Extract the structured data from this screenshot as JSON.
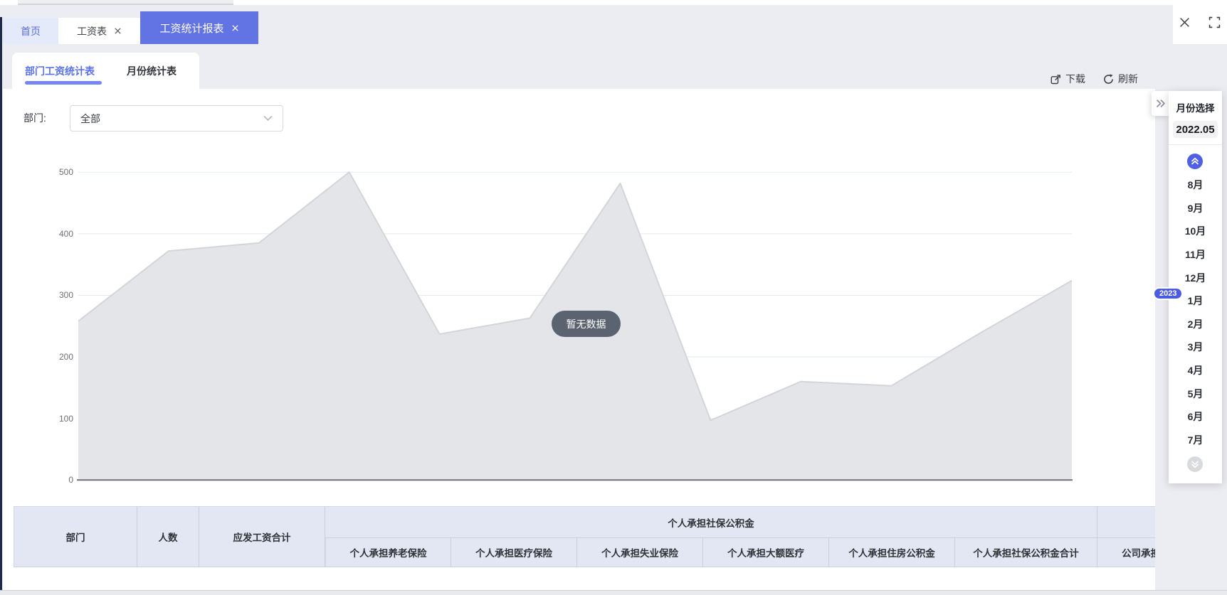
{
  "tab_bar": {
    "tabs": [
      {
        "label": "首页",
        "active": false,
        "closable": false
      },
      {
        "label": "工资表",
        "active": false,
        "closable": true
      },
      {
        "label": "工资统计报表",
        "active": true,
        "closable": true
      }
    ]
  },
  "subtabs": [
    {
      "label": "部门工资统计表",
      "active": true
    },
    {
      "label": "月份统计表",
      "active": false
    }
  ],
  "toolbar": {
    "download_label": "下载",
    "refresh_label": "刷新"
  },
  "filter": {
    "label": "部门:",
    "value": "全部"
  },
  "chart_data": {
    "type": "area",
    "title": "",
    "x_labels": [],
    "values": [
      258,
      372,
      385,
      500,
      237,
      263,
      482,
      97,
      160,
      153,
      240,
      324
    ],
    "ylim": [
      0,
      500
    ],
    "yticks": [
      0,
      100,
      200,
      300,
      400,
      500
    ],
    "grid": true,
    "legend": "none",
    "no_data_label": "暂无数据"
  },
  "month_panel": {
    "title": "月份选择",
    "selected": "2022.05",
    "year_badge": "2023",
    "months": [
      "8月",
      "9月",
      "10月",
      "11月",
      "12月",
      "1月",
      "2月",
      "3月",
      "4月",
      "5月",
      "6月",
      "7月"
    ]
  },
  "table": {
    "header_groups": [
      {
        "label": "部门",
        "rowspan": 2
      },
      {
        "label": "人数",
        "rowspan": 2
      },
      {
        "label": "应发工资合计",
        "rowspan": 2
      },
      {
        "label": "个人承担社保公积金",
        "colspan": 6
      },
      {
        "label": "",
        "colspan": 1
      }
    ],
    "header_cols": [
      "个人承担养老保险",
      "个人承担医疗保险",
      "个人承担失业保险",
      "个人承担大额医疗",
      "个人承担住房公积金",
      "个人承担社保公积金合计",
      "公司承担养老保险"
    ],
    "rows": []
  },
  "colors": {
    "accent": "#5a6fe3",
    "active_tab_bg": "#6273e3",
    "subtab_underline": "#7487f0",
    "area_fill": "#e4e5e8",
    "area_line": "#d3d5da",
    "axis": "#6e7079",
    "gridline": "#e3e8f2",
    "no_data_bg": "#5c6370",
    "badge_bg": "#4b5ce2",
    "scroll_up_bg": "#5060e2",
    "scroll_down_bg": "#d9dade"
  }
}
